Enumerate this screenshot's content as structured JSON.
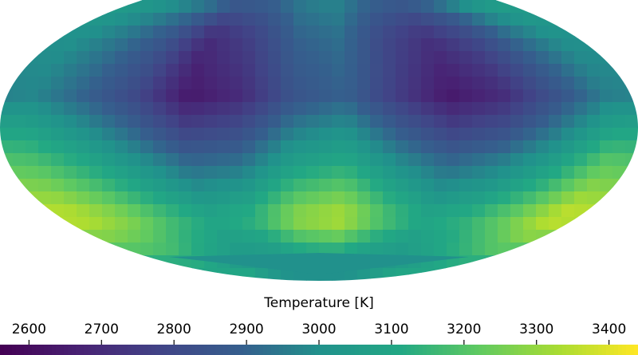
{
  "chart_data": {
    "type": "heatmap",
    "projection": "mollweide",
    "colormap": "viridis",
    "colorbar": {
      "label": "Temperature [K]",
      "vmin": 2560,
      "vmax": 3440,
      "ticks": [
        2600,
        2700,
        2800,
        2900,
        3000,
        3100,
        3200,
        3300,
        3400
      ]
    },
    "longitude_centers": [
      -165,
      -135,
      -105,
      -75,
      -45,
      -15,
      15,
      45,
      75,
      105,
      135,
      165
    ],
    "latitude_centers": [
      75,
      45,
      15,
      -15,
      -45,
      -75
    ],
    "values": [
      [
        3050,
        3030,
        2990,
        2960,
        2950,
        2980,
        3000,
        2960,
        2950,
        2980,
        3050,
        3100
      ],
      [
        3000,
        2940,
        2860,
        2700,
        2780,
        2900,
        2930,
        2800,
        2720,
        2800,
        2920,
        3000
      ],
      [
        2980,
        2900,
        2800,
        2640,
        2700,
        2850,
        2900,
        2760,
        2640,
        2700,
        2840,
        2960
      ],
      [
        3180,
        3100,
        3000,
        2900,
        2920,
        3050,
        3100,
        2980,
        2900,
        2950,
        3050,
        3200
      ],
      [
        3360,
        3280,
        3180,
        3100,
        3150,
        3300,
        3350,
        3200,
        3100,
        3150,
        3250,
        3380
      ],
      [
        3100,
        3100,
        3050,
        3020,
        3000,
        3000,
        3000,
        3000,
        3020,
        3050,
        3080,
        3100
      ]
    ]
  }
}
